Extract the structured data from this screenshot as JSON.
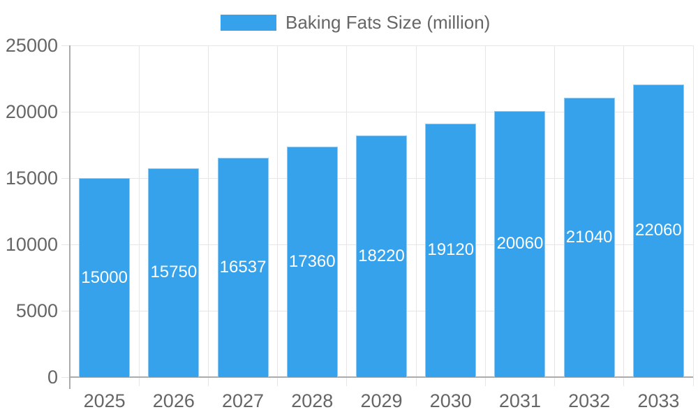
{
  "legend": {
    "label": "Baking Fats Size (million)"
  },
  "colors": {
    "bar": "#36A2EB",
    "bar_edge": "rgba(255,255,255,0.45)",
    "axis_text": "#666666",
    "value_text": "#FFFFFF",
    "gridline": "#E6E6E6",
    "zero_line": "#ABABAB",
    "background": "#FFFFFF"
  },
  "chart_data": {
    "type": "bar",
    "title": "",
    "xlabel": "",
    "ylabel": "",
    "categories": [
      "2025",
      "2026",
      "2027",
      "2028",
      "2029",
      "2030",
      "2031",
      "2032",
      "2033"
    ],
    "series": [
      {
        "name": "Baking Fats Size (million)",
        "values": [
          15000,
          15750,
          16537,
          17360,
          18220,
          19120,
          20060,
          21040,
          22060
        ]
      }
    ],
    "bar_labels": [
      "15000",
      "15750",
      "16537",
      "17360",
      "18220",
      "19120",
      "20060",
      "21040",
      "22060"
    ],
    "ylim": [
      0,
      25000
    ],
    "yticks": [
      0,
      5000,
      10000,
      15000,
      20000,
      25000
    ],
    "ytick_labels": [
      "0",
      "5000",
      "10000",
      "15000",
      "20000",
      "25000"
    ],
    "grid": true,
    "legend_position": "top",
    "bar_label_position": "inside-middle"
  }
}
